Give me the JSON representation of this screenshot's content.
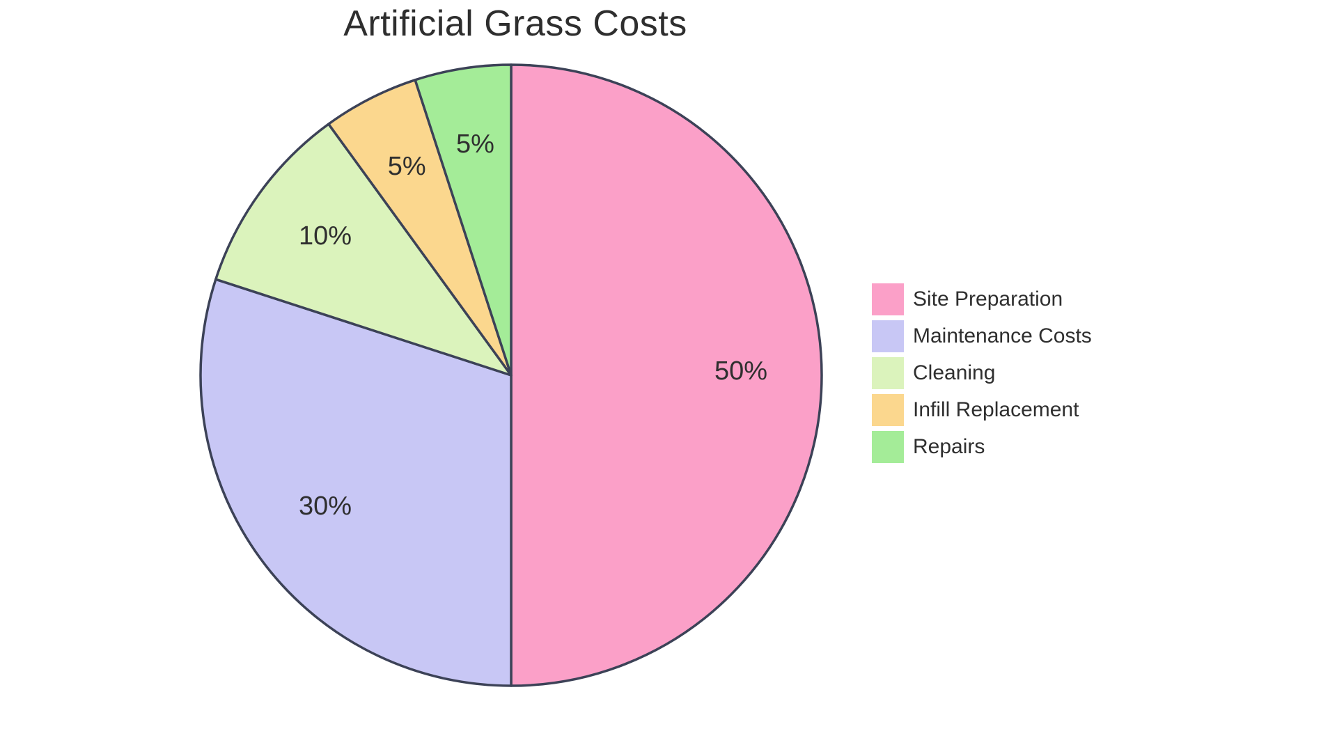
{
  "chart_data": {
    "type": "pie",
    "title": "Artificial Grass Costs",
    "labels": [
      "Site Preparation",
      "Maintenance Costs",
      "Cleaning",
      "Infill Replacement",
      "Repairs"
    ],
    "values": [
      50,
      30,
      10,
      5,
      5
    ],
    "percent_labels": [
      "50%",
      "30%",
      "10%",
      "5%",
      "5%"
    ],
    "colors": [
      "#FBA0C8",
      "#C8C7F5",
      "#DBF3BC",
      "#FBD78E",
      "#A4EC98"
    ],
    "slice_border_color": "#3C4257",
    "text_color": "#2f2f2f",
    "background_color": "#ffffff",
    "legend_position": "right",
    "start_angle_deg": 0,
    "direction": "clockwise"
  }
}
